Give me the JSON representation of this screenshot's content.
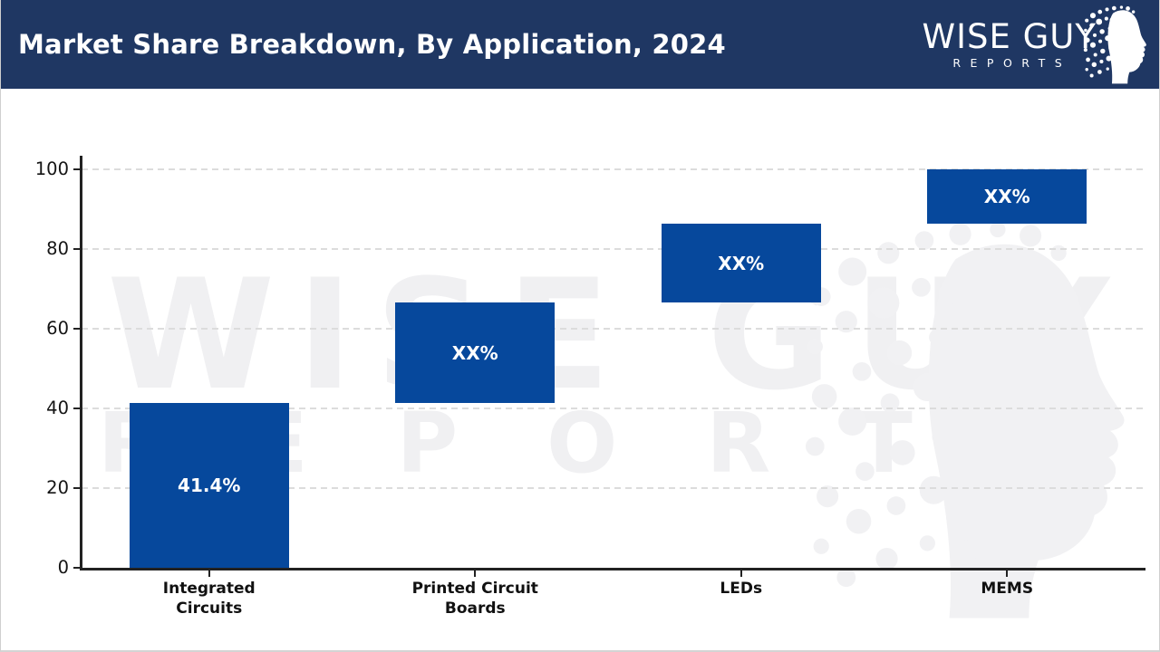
{
  "header": {
    "title": "Market Share Breakdown, By Application, 2024",
    "logo": {
      "line1": "WISE GUY",
      "line2": "REPORTS"
    }
  },
  "watermark": {
    "line1": "WISE GUY",
    "line2": "REPORTS"
  },
  "chart_data": {
    "type": "bar",
    "subtype": "waterfall",
    "title": "Market Share Breakdown, By Application, 2024",
    "categories": [
      "Integrated\nCircuits",
      "Printed Circuit\nBoards",
      "LEDs",
      "MEMS"
    ],
    "segments": [
      {
        "category": "Integrated Circuits",
        "start": 0,
        "end": 41.4,
        "label": "41.4%"
      },
      {
        "category": "Printed Circuit Boards",
        "start": 41.4,
        "end": 66.5,
        "label": "XX%"
      },
      {
        "category": "LEDs",
        "start": 66.5,
        "end": 86.3,
        "label": "XX%"
      },
      {
        "category": "MEMS",
        "start": 86.3,
        "end": 100,
        "label": "XX%"
      }
    ],
    "ylim": [
      0,
      100
    ],
    "yticks": [
      0,
      20,
      40,
      60,
      80,
      100
    ],
    "grid": "horizontal-dashed",
    "legend": "none",
    "bar_color": "#06489c",
    "bar_label_color": "#ffffff",
    "xlabel": "",
    "ylabel": ""
  }
}
